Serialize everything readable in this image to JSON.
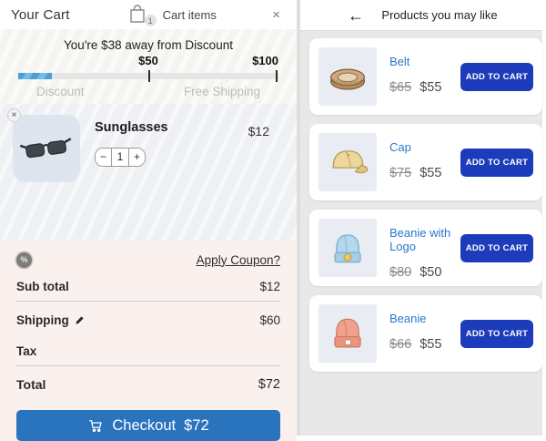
{
  "colors": {
    "checkout_blue": "#2a73bd",
    "add_to_cart_blue": "#1d3cbb",
    "product_title_blue": "#2878cc",
    "progress_fill_blue": "#4aa0d6"
  },
  "cart": {
    "title": "Your Cart",
    "items_count": "1",
    "items_label": "Cart items",
    "close_glyph": "×",
    "progress": {
      "message": "You're $38 away from Discount",
      "mid_label": "$50",
      "end_label": "$100",
      "left_goal": "Discount",
      "right_goal": "Free Shipping",
      "percent": 13
    },
    "item": {
      "name": "Sunglasses",
      "price": "$12",
      "qty": "1",
      "minus_glyph": "−",
      "plus_glyph": "+",
      "remove_glyph": "×",
      "image": "sunglasses"
    },
    "summary": {
      "coupon_link": "Apply Coupon?",
      "coupon_icon_glyph": "%",
      "subtotal_label": "Sub total",
      "subtotal_value": "$12",
      "shipping_label": "Shipping",
      "shipping_value": "$60",
      "tax_label": "Tax",
      "tax_value": "",
      "total_label": "Total",
      "total_value": "$72"
    },
    "checkout": {
      "label": "Checkout",
      "amount": "$72"
    }
  },
  "suggestions": {
    "back_glyph": "←",
    "title": "Products you may like",
    "products": [
      {
        "name": "Belt",
        "old_price": "$65",
        "price": "$55",
        "button": "ADD TO CART",
        "image": "belt"
      },
      {
        "name": "Cap",
        "old_price": "$75",
        "price": "$55",
        "button": "ADD TO CART",
        "image": "cap"
      },
      {
        "name": "Beanie with Logo",
        "old_price": "$80",
        "price": "$50",
        "button": "ADD TO CART",
        "image": "beanie-logo"
      },
      {
        "name": "Beanie",
        "old_price": "$66",
        "price": "$55",
        "button": "ADD TO CART",
        "image": "beanie"
      }
    ]
  }
}
